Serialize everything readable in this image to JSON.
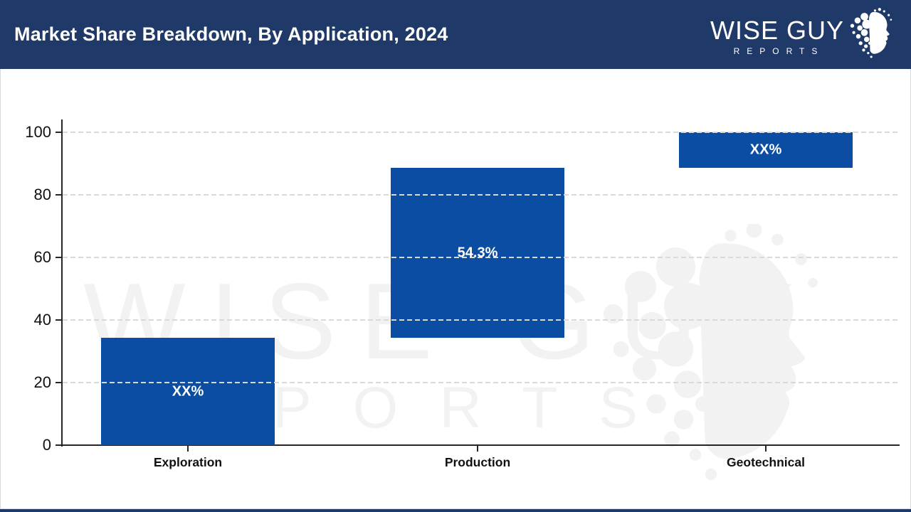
{
  "header": {
    "title": "Market Share Breakdown, By Application, 2024",
    "logo": {
      "wordmark": "WISE GUY",
      "subtitle": "REPORTS"
    }
  },
  "watermark": {
    "line1": "WISE GUY",
    "line2": "REPORTS"
  },
  "colors": {
    "header_bg": "#1f3a68",
    "bar": "#0b4da2",
    "bar_label": "#ffffff",
    "gridline": "#d9d9d9",
    "axis": "#262626",
    "watermark": "#f2f2f2"
  },
  "chart_data": {
    "type": "bar",
    "subtype": "floating-waterfall",
    "title": "Market Share Breakdown, By Application, 2024",
    "categories": [
      "Exploration",
      "Production",
      "Geotechnical"
    ],
    "bars": [
      {
        "category": "Exploration",
        "start": 0,
        "end": 34.3,
        "label": "XX%"
      },
      {
        "category": "Production",
        "start": 34.3,
        "end": 88.6,
        "label": "54.3%"
      },
      {
        "category": "Geotechnical",
        "start": 88.6,
        "end": 100,
        "label": "XX%"
      }
    ],
    "xlabel": "",
    "ylabel": "",
    "ylim": [
      0,
      100
    ],
    "yticks": [
      0,
      20,
      40,
      60,
      80,
      100
    ],
    "grid": "horizontal dashed, drawn above bars",
    "legend": "none",
    "bar_color": "#0b4da2",
    "value_label_color": "#ffffff"
  }
}
